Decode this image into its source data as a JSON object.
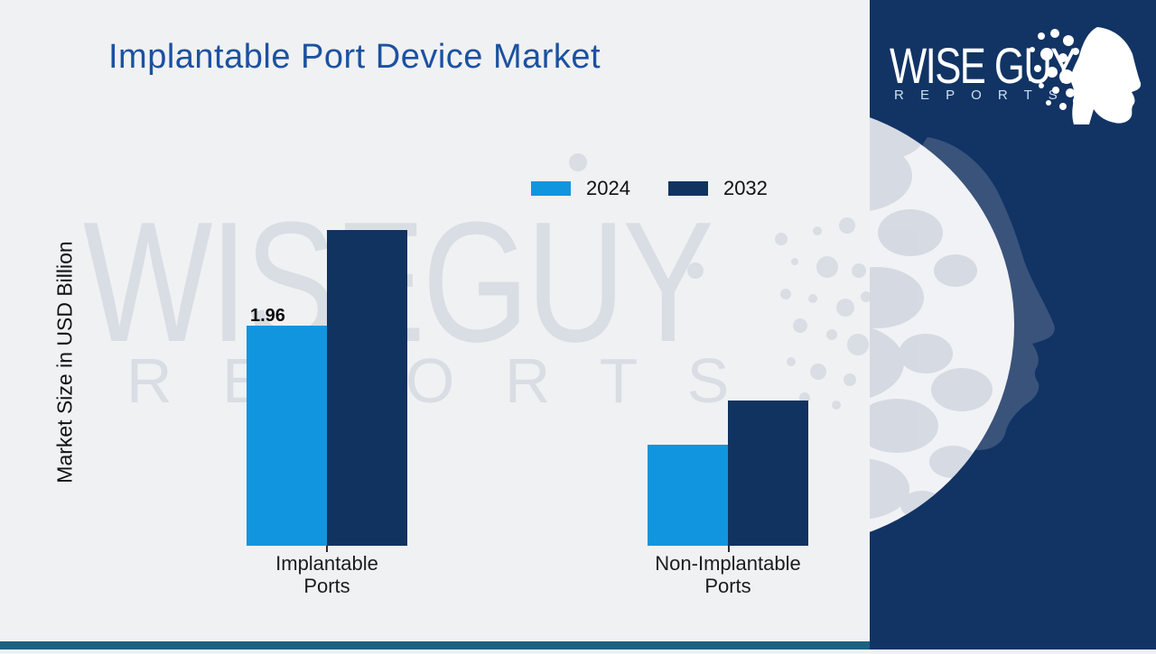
{
  "page": {
    "background": "#f0f1f3",
    "footer_strip_color": "#1d6180"
  },
  "title": {
    "text": "Implantable Port Device Market",
    "color": "#1b51a1"
  },
  "chart": {
    "ylabel": "Market Size in USD Billion",
    "value_label": "1.96",
    "legend": [
      {
        "label": "2024",
        "color": "#1295df"
      },
      {
        "label": "2032",
        "color": "#113360"
      }
    ],
    "categories_display": [
      {
        "line1": "Implantable",
        "line2": "Ports"
      },
      {
        "line1": "Non-Implantable",
        "line2": "Ports"
      }
    ]
  },
  "chart_data": {
    "type": "bar",
    "title": "Implantable Port Device Market",
    "xlabel": "",
    "ylabel": "Market Size in USD Billion",
    "categories": [
      "Implantable Ports",
      "Non-Implantable Ports"
    ],
    "series": [
      {
        "name": "2024",
        "color": "#1295df",
        "values": [
          1.96,
          0.9
        ]
      },
      {
        "name": "2032",
        "color": "#113360",
        "values": [
          2.81,
          1.29
        ]
      }
    ],
    "ylim": [
      0,
      3.2
    ],
    "grid": false,
    "legend_position": "top-right",
    "data_labels": [
      {
        "series": "2024",
        "category": "Implantable Ports",
        "text": "1.96"
      }
    ]
  },
  "watermark": {
    "line1": "WISEGUY",
    "line2": "R E P O R T S",
    "color": "#d9dde4"
  },
  "brand": {
    "name": "WISE GUY",
    "sub": "R E P O R T S",
    "panel_color": "#113465",
    "face_color": "#3a537b",
    "circle_color": "#f1f2f5",
    "sub_color": "#cfe0ef"
  }
}
